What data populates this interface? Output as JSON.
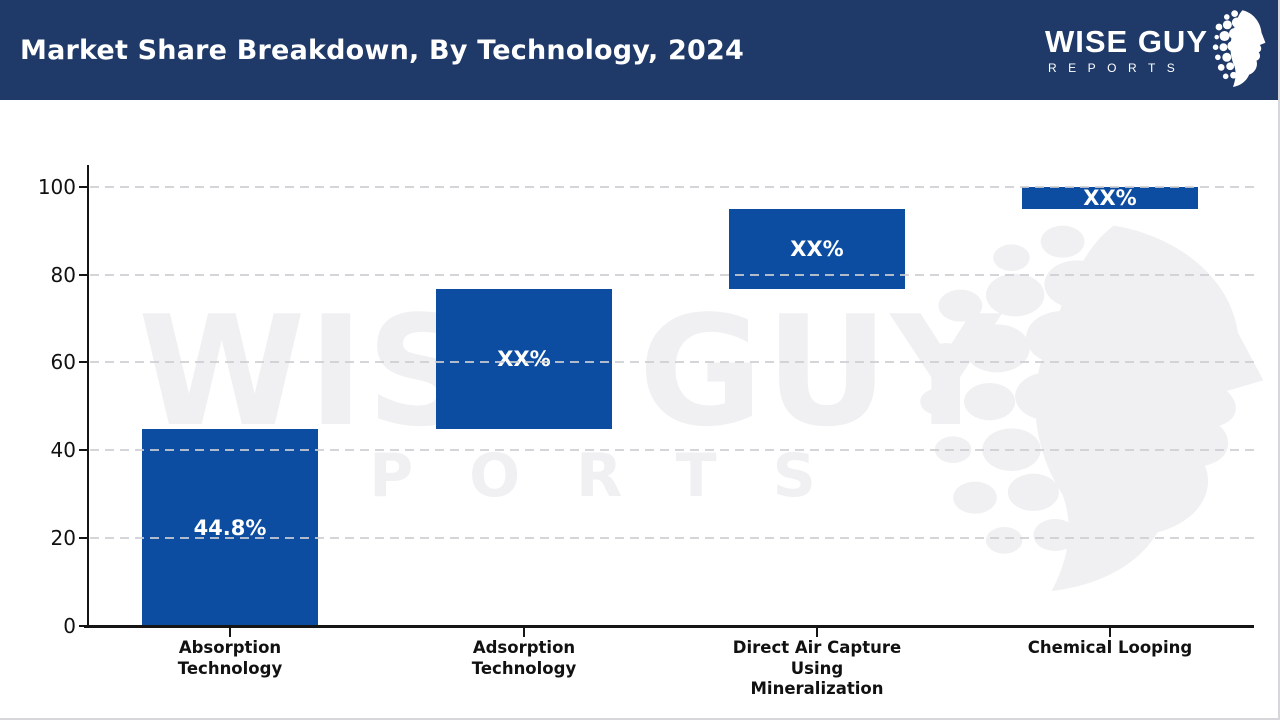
{
  "header": {
    "title": "Market Share Breakdown, By Technology, 2024",
    "logo": {
      "line1": "WISE GUY",
      "line2": "REPORTS"
    }
  },
  "watermark": {
    "line1": "WISE GUY",
    "line2": "REPORTS"
  },
  "colors": {
    "header_bg": "#1f3a68",
    "bar": "#0c4da2",
    "bar_label_text": "#ffffff",
    "axis": "#151515",
    "gridline": "#d6d6da",
    "watermark": "#f0f0f3",
    "page_border": "#d6d6db"
  },
  "chart_data": {
    "type": "bar",
    "subtype": "waterfall",
    "title": "Market Share Breakdown, By Technology, 2024",
    "categories": [
      "Absorption\nTechnology",
      "Adsorption\nTechnology",
      "Direct Air Capture\nUsing\nMineralization",
      "Chemical Looping"
    ],
    "segments": [
      {
        "start": 0,
        "end": 44.8,
        "label": "44.8%"
      },
      {
        "start": 44.8,
        "end": 76.8,
        "label": "XX%"
      },
      {
        "start": 76.8,
        "end": 95,
        "label": "XX%"
      },
      {
        "start": 95,
        "end": 100,
        "label": "XX%"
      }
    ],
    "xlabel": "",
    "ylabel": "",
    "ylim": [
      0,
      100
    ],
    "yticks": [
      0,
      20,
      40,
      60,
      80,
      100
    ],
    "grid": "horizontal-dashed",
    "legend": "none"
  }
}
